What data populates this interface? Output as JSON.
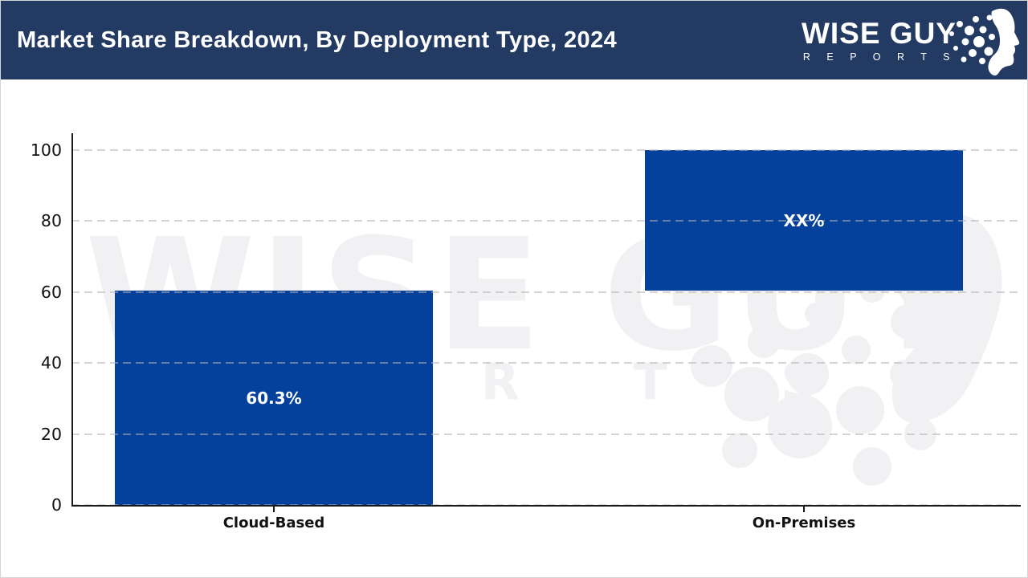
{
  "header": {
    "title": "Market Share Breakdown, By Deployment Type, 2024",
    "logo": {
      "line1": "WISE GUY",
      "line2": "R E P O R T S",
      "icon": "dotted-face-profile"
    }
  },
  "watermark": {
    "line1": "WISE GUY",
    "line2": "R T S"
  },
  "colors": {
    "header_bg": "#233A63",
    "bar_fill": "#04419C",
    "bar_label_text": "#FFFFFF",
    "axis": "#1A1A1A",
    "gridline": "#D5D5D5",
    "watermark": "#F1F1F4",
    "title_text": "#FFFFFF"
  },
  "chart_data": {
    "type": "bar",
    "subtype": "waterfall-segments",
    "title": "Market Share Breakdown, By Deployment Type, 2024",
    "categories": [
      "Cloud-Based",
      "On-Premises"
    ],
    "bars": [
      {
        "category": "Cloud-Based",
        "start": 0,
        "end": 60.3,
        "label": "60.3%"
      },
      {
        "category": "On-Premises",
        "start": 60.3,
        "end": 100,
        "label": "XX%"
      }
    ],
    "yticks": [
      0,
      20,
      40,
      60,
      80,
      100
    ],
    "ylim": [
      0,
      104.8
    ],
    "xlabel": "",
    "ylabel": "",
    "grid": "horizontal-dashed",
    "legend_position": "none"
  }
}
